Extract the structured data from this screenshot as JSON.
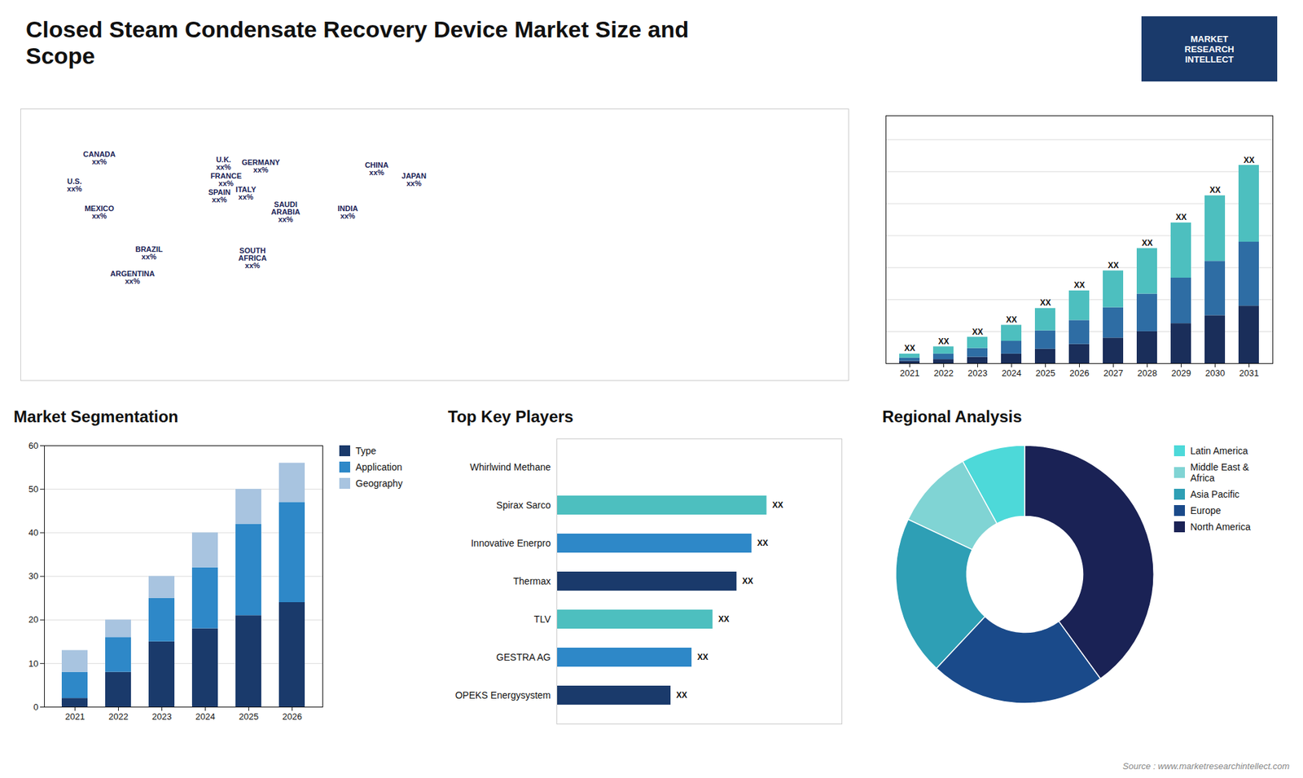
{
  "title": "Closed Steam Condensate Recovery Device Market Size and\nScope",
  "annotations": [
    "MARKET\nRESEARCH\nINTELLECT",
    "Source : www.marketresearchintellect.com"
  ],
  "chart_data": [
    {
      "type": "map",
      "labels": [
        "CANADA\nxx%",
        "U.S.\nxx%",
        "MEXICO\nxx%",
        "BRAZIL\nxx%",
        "ARGENTINA\nxx%",
        "U.K.\nxx%",
        "FRANCE\nxx%",
        "SPAIN\nxx%",
        "GERMANY\nxx%",
        "ITALY\nxx%",
        "SAUDI\nARABIA\nxx%",
        "SOUTH\nAFRICA\nxx%",
        "CHINA\nxx%",
        "INDIA\nxx%",
        "JAPAN\nxx%"
      ],
      "x": [
        0.095,
        0.065,
        0.095,
        0.155,
        0.135,
        0.245,
        0.248,
        0.24,
        0.29,
        0.272,
        0.32,
        0.28,
        0.43,
        0.395,
        0.475
      ],
      "y": [
        0.82,
        0.72,
        0.62,
        0.47,
        0.38,
        0.8,
        0.74,
        0.68,
        0.79,
        0.69,
        0.62,
        0.45,
        0.78,
        0.62,
        0.74
      ],
      "xlim": [
        0,
        1
      ],
      "ylim": [
        0,
        1
      ],
      "tick_labels": false
    },
    {
      "type": "bar",
      "stacked": true,
      "categories": [
        "2021",
        "2022",
        "2023",
        "2024",
        "2025",
        "2026",
        "2027",
        "2028",
        "2029",
        "2030",
        "2031"
      ],
      "series": [
        {
          "color": "#1a2e5a",
          "values": [
            1.5,
            2.5,
            4,
            6,
            9,
            12,
            16,
            20,
            25,
            30,
            36
          ]
        },
        {
          "color": "#2e6da4",
          "values": [
            2,
            3.5,
            5.5,
            8,
            11.5,
            15,
            19,
            23.5,
            28.5,
            34,
            40
          ]
        },
        {
          "color": "#4dbfbf",
          "values": [
            2.5,
            4.5,
            7,
            10,
            14,
            18.5,
            23,
            28.5,
            34.5,
            41,
            48
          ]
        }
      ],
      "annotations": [
        "XX",
        "XX",
        "XX",
        "XX",
        "XX",
        "XX",
        "XX",
        "XX",
        "XX",
        "XX",
        "XX"
      ],
      "ylim": [
        0,
        155
      ],
      "yticks": [
        0,
        20,
        40,
        60,
        80,
        100,
        120,
        140
      ],
      "grid": true,
      "tick_labels": "x"
    },
    {
      "type": "bar",
      "stacked": true,
      "title": "Market Segmentation",
      "categories": [
        "2021",
        "2022",
        "2023",
        "2024",
        "2025",
        "2026"
      ],
      "series": [
        {
          "name": "Type",
          "color": "#1a3a6b",
          "values": [
            2,
            8,
            15,
            18,
            21,
            24
          ]
        },
        {
          "name": "Application",
          "color": "#2e88c8",
          "values": [
            6,
            8,
            10,
            14,
            21,
            23
          ]
        },
        {
          "name": "Geography",
          "color": "#a8c4e0",
          "values": [
            5,
            4,
            5,
            8,
            8,
            9
          ]
        }
      ],
      "ylim": [
        0,
        60
      ],
      "yticks": [
        0,
        10,
        20,
        30,
        40,
        50,
        60
      ],
      "grid": true,
      "legend": "right"
    },
    {
      "type": "bar",
      "orientation": "horizontal",
      "title": "Top Key Players",
      "categories": [
        "Whirlwind Methane",
        "Spirax Sarco",
        "Innovative Enerpro",
        "Thermax",
        "TLV",
        "GESTRA AG",
        "OPEKS Energysystem"
      ],
      "values": [
        0,
        70,
        65,
        60,
        52,
        45,
        38
      ],
      "colors": [
        "#1a3a6b",
        "#4dbfbf",
        "#2e88c8",
        "#1a3a6b",
        "#4dbfbf",
        "#2e88c8",
        "#1a3a6b"
      ],
      "annotations": [
        null,
        "XX",
        "XX",
        "XX",
        "XX",
        "XX",
        "XX"
      ],
      "xlim": [
        0,
        95
      ],
      "tick_labels": "y"
    },
    {
      "type": "donut",
      "title": "Regional Analysis",
      "categories": [
        "Latin America",
        "Middle East &\nAfrica",
        "Asia Pacific",
        "Europe",
        "North America"
      ],
      "values": [
        8,
        10,
        20,
        22,
        40
      ],
      "colors": [
        "#4dd9d9",
        "#80d4d4",
        "#2e9fb5",
        "#1a4a8a",
        "#1a2255"
      ],
      "legend": "right"
    }
  ]
}
